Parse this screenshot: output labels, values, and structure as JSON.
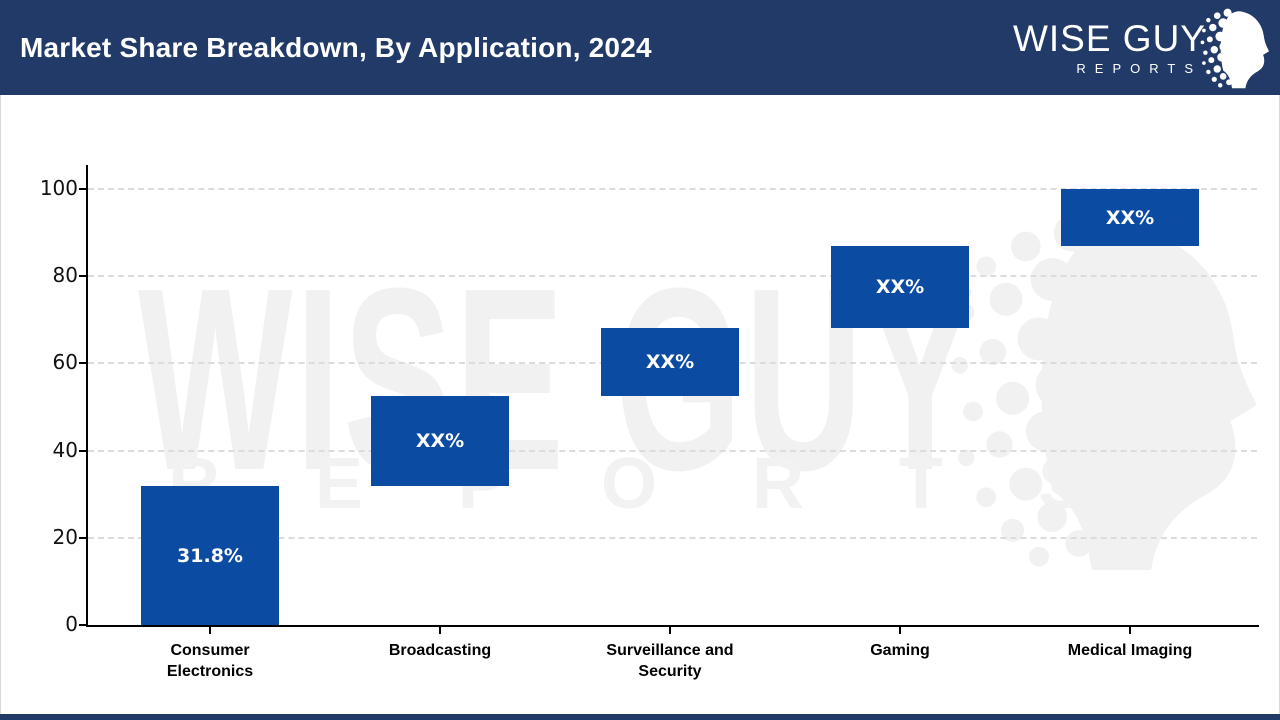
{
  "header": {
    "title": "Market Share Breakdown, By Application, 2024",
    "logo": {
      "wordmark": "WISE GUY",
      "subtext": "REPORTS"
    },
    "background_color": "#223a67"
  },
  "watermark": {
    "line1": "WISE GUY",
    "line2": "REPORTS"
  },
  "chart_data": {
    "type": "bar",
    "subtype": "stepped-waterfall-market-share",
    "title": "Market Share Breakdown, By Application, 2024",
    "categories": [
      "Consumer Electronics",
      "Broadcasting",
      "Surveillance and Security",
      "Gaming",
      "Medical Imaging"
    ],
    "segments": [
      {
        "category": "Consumer Electronics",
        "start": 0,
        "end": 31.8,
        "value": 31.8,
        "label": "31.8%"
      },
      {
        "category": "Broadcasting",
        "start": 31.8,
        "end": 52.5,
        "value": 20.7,
        "label": "XX%"
      },
      {
        "category": "Surveillance and Security",
        "start": 52.5,
        "end": 68.2,
        "value": 15.7,
        "label": "XX%"
      },
      {
        "category": "Gaming",
        "start": 68.2,
        "end": 86.9,
        "value": 18.7,
        "label": "XX%"
      },
      {
        "category": "Medical Imaging",
        "start": 86.9,
        "end": 100,
        "value": 13.1,
        "label": "XX%"
      }
    ],
    "xlabel": "",
    "ylabel": "",
    "yticks": [
      0,
      20,
      40,
      60,
      80,
      100
    ],
    "ylim": [
      0,
      105
    ],
    "grid": "horizontal-dashed",
    "legend": "none",
    "bar_color": "#0b4ba1",
    "bar_label_color": "#ffffff",
    "axis_color": "#000000",
    "grid_color": "#dcdcdc",
    "tick_label_color": "#111111"
  },
  "footer": {
    "background_color": "#223a67"
  }
}
